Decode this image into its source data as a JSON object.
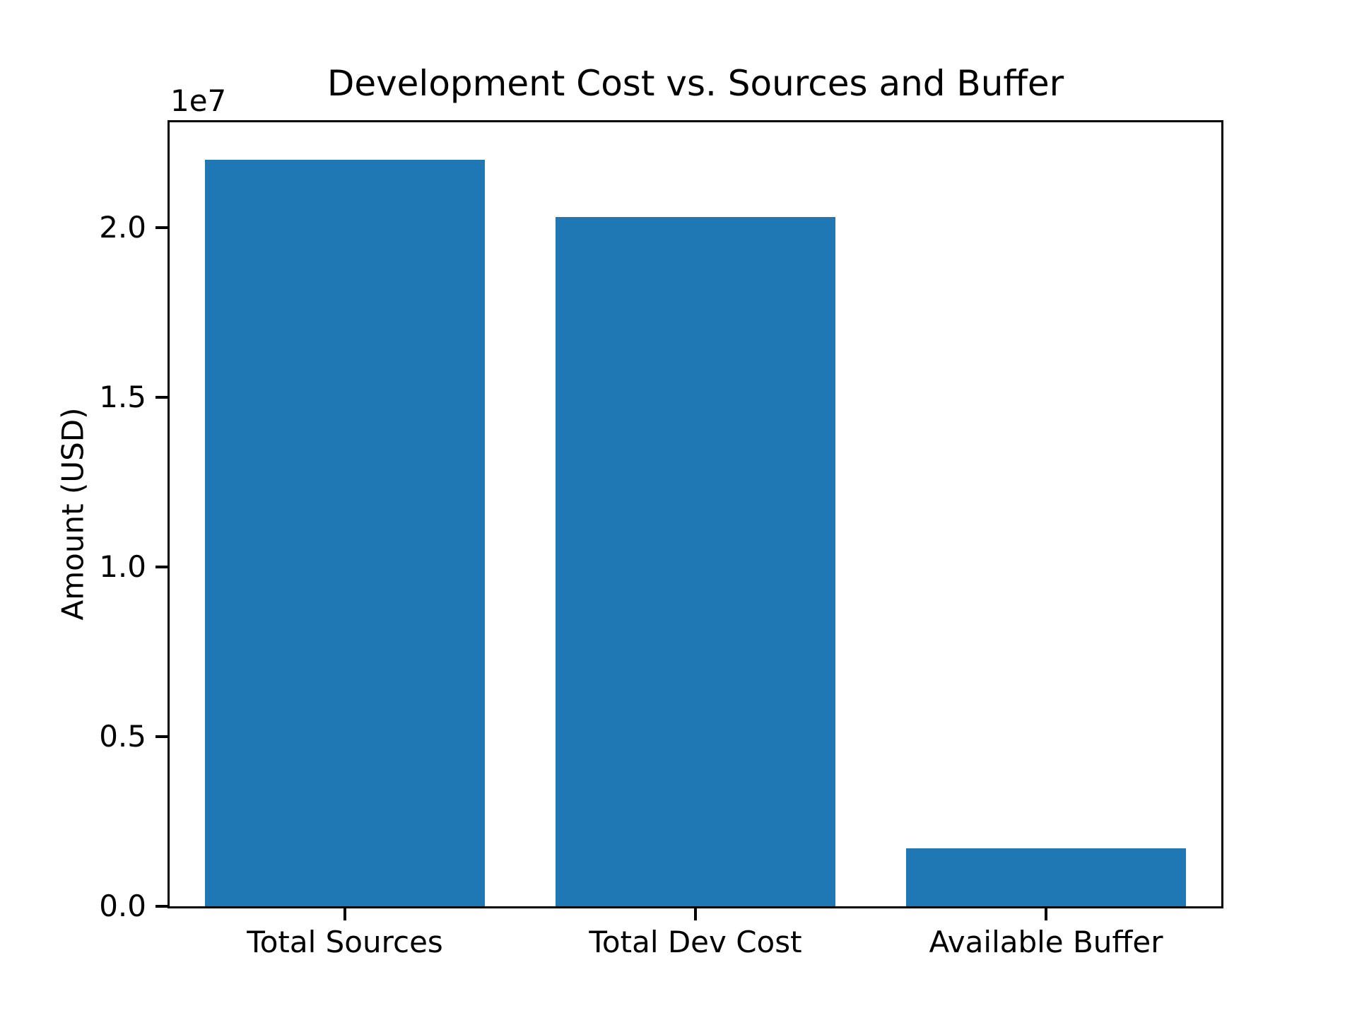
{
  "chart_data": {
    "type": "bar",
    "title": "Development Cost vs. Sources and Buffer",
    "xlabel": "",
    "ylabel": "Amount (USD)",
    "y_offset_text": "1e7",
    "categories": [
      "Total Sources",
      "Total Dev Cost",
      "Available Buffer"
    ],
    "values": [
      22000000,
      20300000,
      1700000
    ],
    "bar_color": "#1f77b4",
    "ylim": [
      0,
      23100000
    ],
    "yticks": [
      {
        "value": 0,
        "label": "0.0"
      },
      {
        "value": 5000000,
        "label": "0.5"
      },
      {
        "value": 10000000,
        "label": "1.0"
      },
      {
        "value": 15000000,
        "label": "1.5"
      },
      {
        "value": 20000000,
        "label": "2.0"
      }
    ],
    "grid": false,
    "legend_position": "none",
    "bar_width_fraction": 0.8
  }
}
